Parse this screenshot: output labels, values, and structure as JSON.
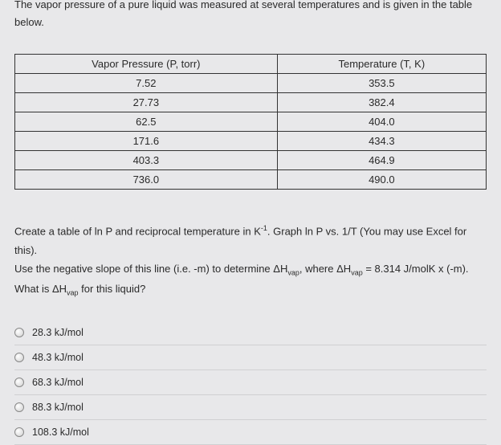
{
  "intro": {
    "top_cut": "The vapor pressure of a pure liquid was measured at several temperatures and is given in the table",
    "below": "below."
  },
  "table": {
    "columns": [
      "Vapor Pressure (P, torr)",
      "Temperature (T, K)"
    ],
    "rows": [
      [
        "7.52",
        "353.5"
      ],
      [
        "27.73",
        "382.4"
      ],
      [
        "62.5",
        "404.0"
      ],
      [
        "171.6",
        "434.3"
      ],
      [
        "403.3",
        "464.9"
      ],
      [
        "736.0",
        "490.0"
      ]
    ],
    "border_color": "#333333",
    "font_size": 13,
    "text_color": "#2a2a2a"
  },
  "question": {
    "line1_pre": "Create a table of ln P and reciprocal temperature in K",
    "line1_sup": "-1",
    "line1_post": ". Graph ln P vs. 1/T (You may use Excel for this).",
    "line2_pre": "Use the negative slope of this line (i.e. -m) to determine ΔH",
    "line2_sub1": "vap",
    "line2_mid": ", where ΔH",
    "line2_sub2": "vap",
    "line2_post": " = 8.314 J/molK x (-m).",
    "line3_pre": "What is ΔH",
    "line3_sub": "vap",
    "line3_post": " for this liquid?"
  },
  "options": [
    {
      "label": "28.3 kJ/mol"
    },
    {
      "label": "48.3 kJ/mol"
    },
    {
      "label": "68.3 kJ/mol"
    },
    {
      "label": "88.3 kJ/mol"
    },
    {
      "label": "108.3 kJ/mol"
    }
  ],
  "colors": {
    "background": "#e8e8ea",
    "text": "#2a2a2a",
    "divider": "#d0d0d2",
    "radio_border": "#888888"
  }
}
